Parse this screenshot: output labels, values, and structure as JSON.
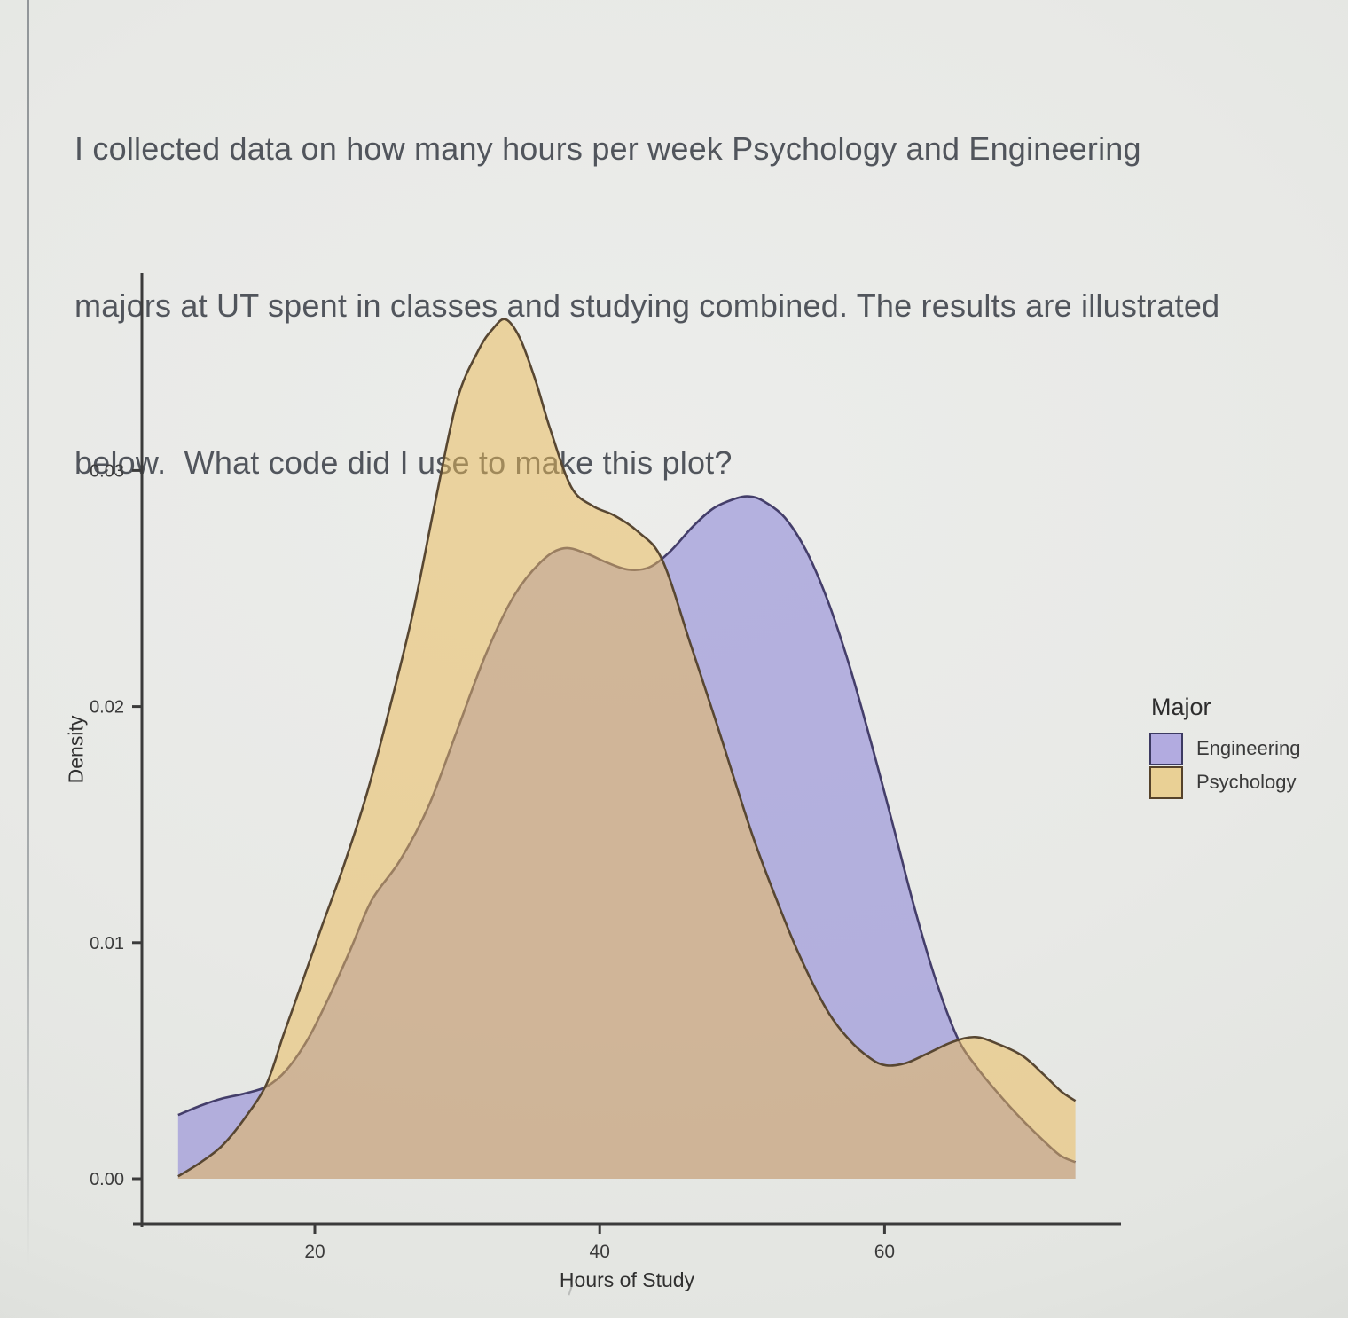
{
  "page": {
    "question_lines": [
      "I collected data on how many hours per week Psychology and Engineering",
      "majors at UT spent in classes and studying combined. The results are illustrated",
      "below.  What code did I use to make this plot?"
    ]
  },
  "chart_data": {
    "type": "area",
    "subtype": "overlapping-density-plot",
    "title": "",
    "xlabel": "Hours of Study",
    "ylabel": "Density",
    "xlim": [
      7.8,
      76.8
    ],
    "ylim": [
      0,
      0.0385
    ],
    "grid": "off",
    "x_ticks": [
      {
        "label": "20",
        "value": 20
      },
      {
        "label": "40",
        "value": 40
      },
      {
        "label": "60",
        "value": 60
      }
    ],
    "y_ticks": [
      {
        "label": "0.00",
        "value": 0.0
      },
      {
        "label": "0.01",
        "value": 0.01
      },
      {
        "label": "0.02",
        "value": 0.02
      },
      {
        "label": "0.03",
        "value": 0.03
      }
    ],
    "legend": {
      "title": "Major",
      "position": "right",
      "entries": [
        {
          "label": "Engineering",
          "fill": "#b2abe0",
          "border": "#3c3a62"
        },
        {
          "label": "Psychology",
          "fill": "#e9d095",
          "border": "#55422a"
        }
      ]
    },
    "series": [
      {
        "name": "Engineering",
        "fill": "rgba(130,122,213,0.52)",
        "stroke": "#443e6a",
        "peak": {
          "x": 50.5,
          "density": 0.0289
        },
        "points": [
          [
            10.4,
            0.0027
          ],
          [
            12,
            0.0031
          ],
          [
            13.5,
            0.0034
          ],
          [
            15,
            0.0036
          ],
          [
            16.6,
            0.0039
          ],
          [
            18,
            0.0046
          ],
          [
            19.5,
            0.0059
          ],
          [
            21,
            0.0077
          ],
          [
            22.5,
            0.0097
          ],
          [
            24,
            0.0118
          ],
          [
            26,
            0.0135
          ],
          [
            28,
            0.0158
          ],
          [
            30,
            0.019
          ],
          [
            32,
            0.0222
          ],
          [
            34,
            0.0247
          ],
          [
            36,
            0.0262
          ],
          [
            37.5,
            0.0267
          ],
          [
            39,
            0.0265
          ],
          [
            40.5,
            0.0261
          ],
          [
            42,
            0.0258
          ],
          [
            43.5,
            0.0259
          ],
          [
            45,
            0.0266
          ],
          [
            46.5,
            0.0276
          ],
          [
            48,
            0.0284
          ],
          [
            49.5,
            0.0288
          ],
          [
            50.5,
            0.0289
          ],
          [
            51.5,
            0.0287
          ],
          [
            53,
            0.028
          ],
          [
            54.5,
            0.0266
          ],
          [
            56,
            0.0245
          ],
          [
            57.5,
            0.0218
          ],
          [
            59,
            0.0186
          ],
          [
            60.5,
            0.0152
          ],
          [
            62,
            0.0117
          ],
          [
            63.5,
            0.0086
          ],
          [
            65.1,
            0.006
          ],
          [
            66.5,
            0.0047
          ],
          [
            68,
            0.0036
          ],
          [
            69.5,
            0.0026
          ],
          [
            71,
            0.0017
          ],
          [
            72.3,
            0.001
          ],
          [
            73.4,
            0.0007
          ]
        ]
      },
      {
        "name": "Psychology",
        "fill": "rgba(233,186,88,0.52)",
        "stroke": "#584732",
        "peak": {
          "x": 33.4,
          "density": 0.0364
        },
        "points": [
          [
            10.4,
            0.0001
          ],
          [
            12,
            0.0007
          ],
          [
            13.5,
            0.0014
          ],
          [
            15,
            0.0025
          ],
          [
            16.6,
            0.004
          ],
          [
            17.8,
            0.0061
          ],
          [
            19.1,
            0.0083
          ],
          [
            20.5,
            0.0107
          ],
          [
            22,
            0.0132
          ],
          [
            23.6,
            0.0162
          ],
          [
            25.2,
            0.0198
          ],
          [
            26.9,
            0.024
          ],
          [
            28.5,
            0.0288
          ],
          [
            30,
            0.033
          ],
          [
            31.5,
            0.0351
          ],
          [
            32.5,
            0.036
          ],
          [
            33.4,
            0.0364
          ],
          [
            34.4,
            0.0356
          ],
          [
            35.5,
            0.0338
          ],
          [
            36.5,
            0.0318
          ],
          [
            38,
            0.0293
          ],
          [
            39.5,
            0.0285
          ],
          [
            41,
            0.0281
          ],
          [
            42.7,
            0.0274
          ],
          [
            44.4,
            0.0262
          ],
          [
            46.4,
            0.0226
          ],
          [
            48.2,
            0.0193
          ],
          [
            50.7,
            0.0146
          ],
          [
            52.5,
            0.0117
          ],
          [
            54,
            0.0095
          ],
          [
            55.9,
            0.0072
          ],
          [
            57.5,
            0.0059
          ],
          [
            59,
            0.0051
          ],
          [
            60.1,
            0.0048
          ],
          [
            61.5,
            0.0049
          ],
          [
            63,
            0.0053
          ],
          [
            64.8,
            0.0058
          ],
          [
            66.4,
            0.006
          ],
          [
            68,
            0.0057
          ],
          [
            69.7,
            0.0052
          ],
          [
            71.2,
            0.0044
          ],
          [
            72.4,
            0.0037
          ],
          [
            73.4,
            0.0033
          ]
        ]
      }
    ]
  }
}
